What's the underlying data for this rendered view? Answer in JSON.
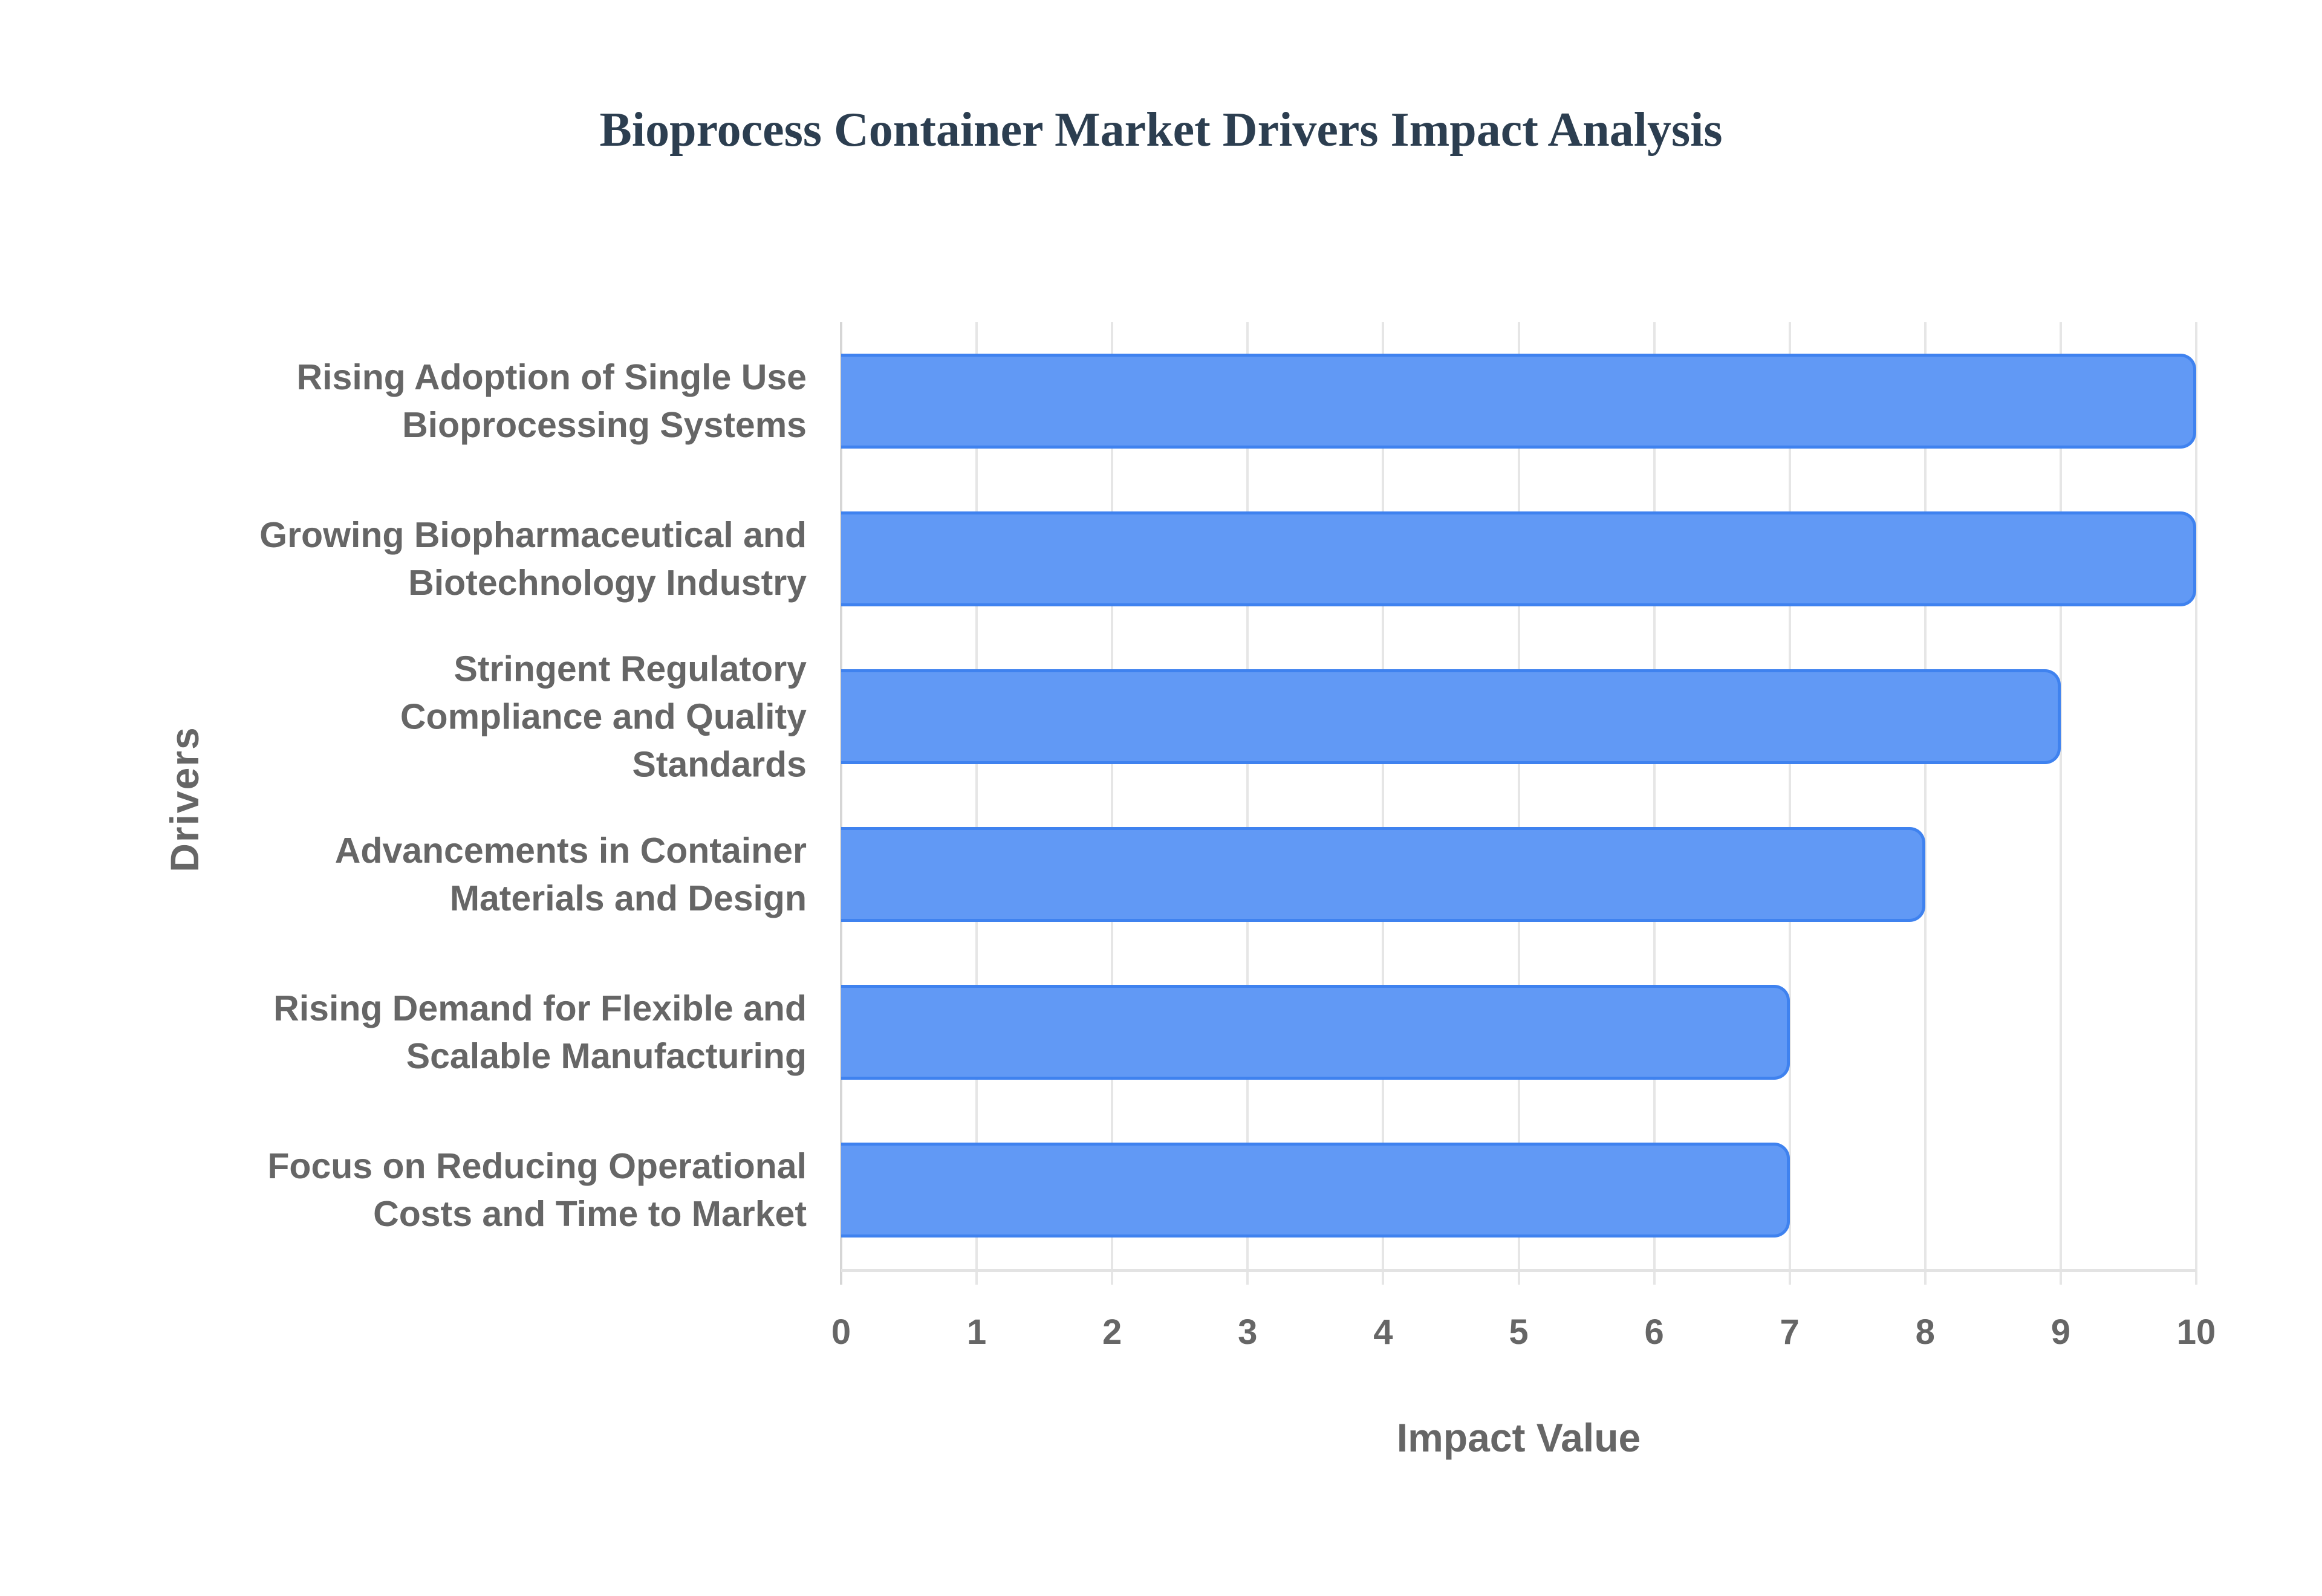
{
  "title": "Bioprocess Container Market Drivers Impact Analysis",
  "colors": {
    "title": "#2c3e50",
    "bar_fill": "#6199f5",
    "bar_border": "#3f82ef",
    "axis_text": "#666666",
    "grid": "#e6e6e6"
  },
  "chart_data": {
    "type": "bar",
    "orientation": "horizontal",
    "title": "Bioprocess Container Market Drivers Impact Analysis",
    "xlabel": "Impact Value",
    "ylabel": "Drivers",
    "xlim": [
      0,
      10
    ],
    "x_ticks": [
      "0",
      "1",
      "2",
      "3",
      "4",
      "5",
      "6",
      "7",
      "8",
      "9",
      "10"
    ],
    "grid": true,
    "legend": false,
    "categories": [
      "Rising Adoption of Single Use Bioprocessing Systems",
      "Growing Biopharmaceutical and Biotechnology Industry",
      "Stringent Regulatory Compliance and Quality Standards",
      "Advancements in Container Materials and Design",
      "Rising Demand for Flexible and Scalable Manufacturing",
      "Focus on Reducing Operational Costs and Time to Market"
    ],
    "values": [
      10,
      10,
      9,
      8,
      7,
      7
    ]
  },
  "labels": [
    {
      "lines": [
        "Rising Adoption of Single Use",
        "Bioprocessing Systems"
      ]
    },
    {
      "lines": [
        "Growing Biopharmaceutical and",
        "Biotechnology Industry"
      ]
    },
    {
      "lines": [
        "Stringent Regulatory",
        "Compliance and Quality",
        "Standards"
      ]
    },
    {
      "lines": [
        "Advancements in Container",
        "Materials and Design"
      ]
    },
    {
      "lines": [
        "Rising Demand for Flexible and",
        "Scalable Manufacturing"
      ]
    },
    {
      "lines": [
        "Focus on Reducing Operational",
        "Costs and Time to Market"
      ]
    }
  ]
}
